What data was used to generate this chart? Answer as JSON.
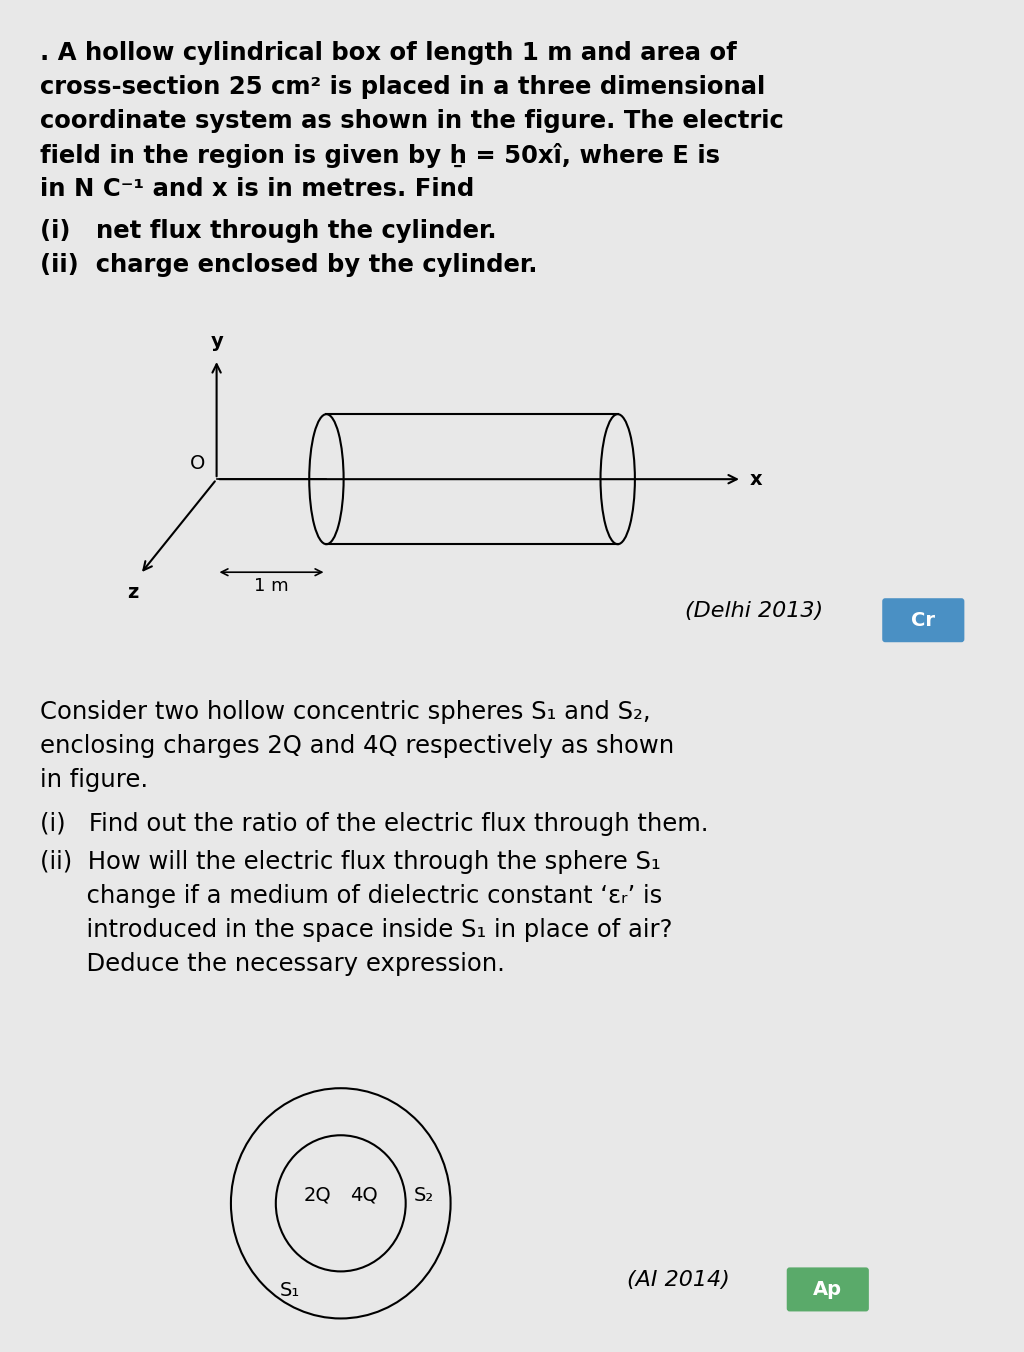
{
  "bg_color": "#e8e8e8",
  "panel1_bg": "#ffffff",
  "panel2_bg": "#f0f0f0",
  "text_color": "#000000",
  "fig_width": 10.24,
  "fig_height": 13.52,
  "dpi": 100,
  "badge1_color": "#4a90c4",
  "badge2_color": "#5aaa6a",
  "badge1_text": "Cr",
  "badge2_text": "Ap",
  "q1_line1": ". A hollow cylindrical box of length 1 m and area of",
  "q1_line2": "cross-section 25 cm² is placed in a three dimensional",
  "q1_line3": "coordinate system as shown in the figure. The electric",
  "q1_line4": "field in the region is given by ẖ = 50xî, where E is",
  "q1_line5": "in N C⁻¹ and x is in metres. Find",
  "q1_i": "(i)   net flux through the cylinder.",
  "q1_ii": "(ii)  charge enclosed by the cylinder.",
  "q1_ref": "(Delhi 2013)",
  "q2_line1": "Consider two hollow concentric spheres S₁ and S₂,",
  "q2_line2": "enclosing charges 2Q and 4Q respectively as shown",
  "q2_line3": "in figure.",
  "q2_i": "(i)   Find out the ratio of the electric flux through them.",
  "q2_ii_1": "(ii)  How will the electric flux through the sphere S₁",
  "q2_ii_2": "      change if a medium of dielectric constant ‘εᵣ’ is",
  "q2_ii_3": "      introduced in the space inside S₁ in place of air?",
  "q2_ii_4": "      Deduce the necessary expression.",
  "q2_ref": "(AI 2014)"
}
